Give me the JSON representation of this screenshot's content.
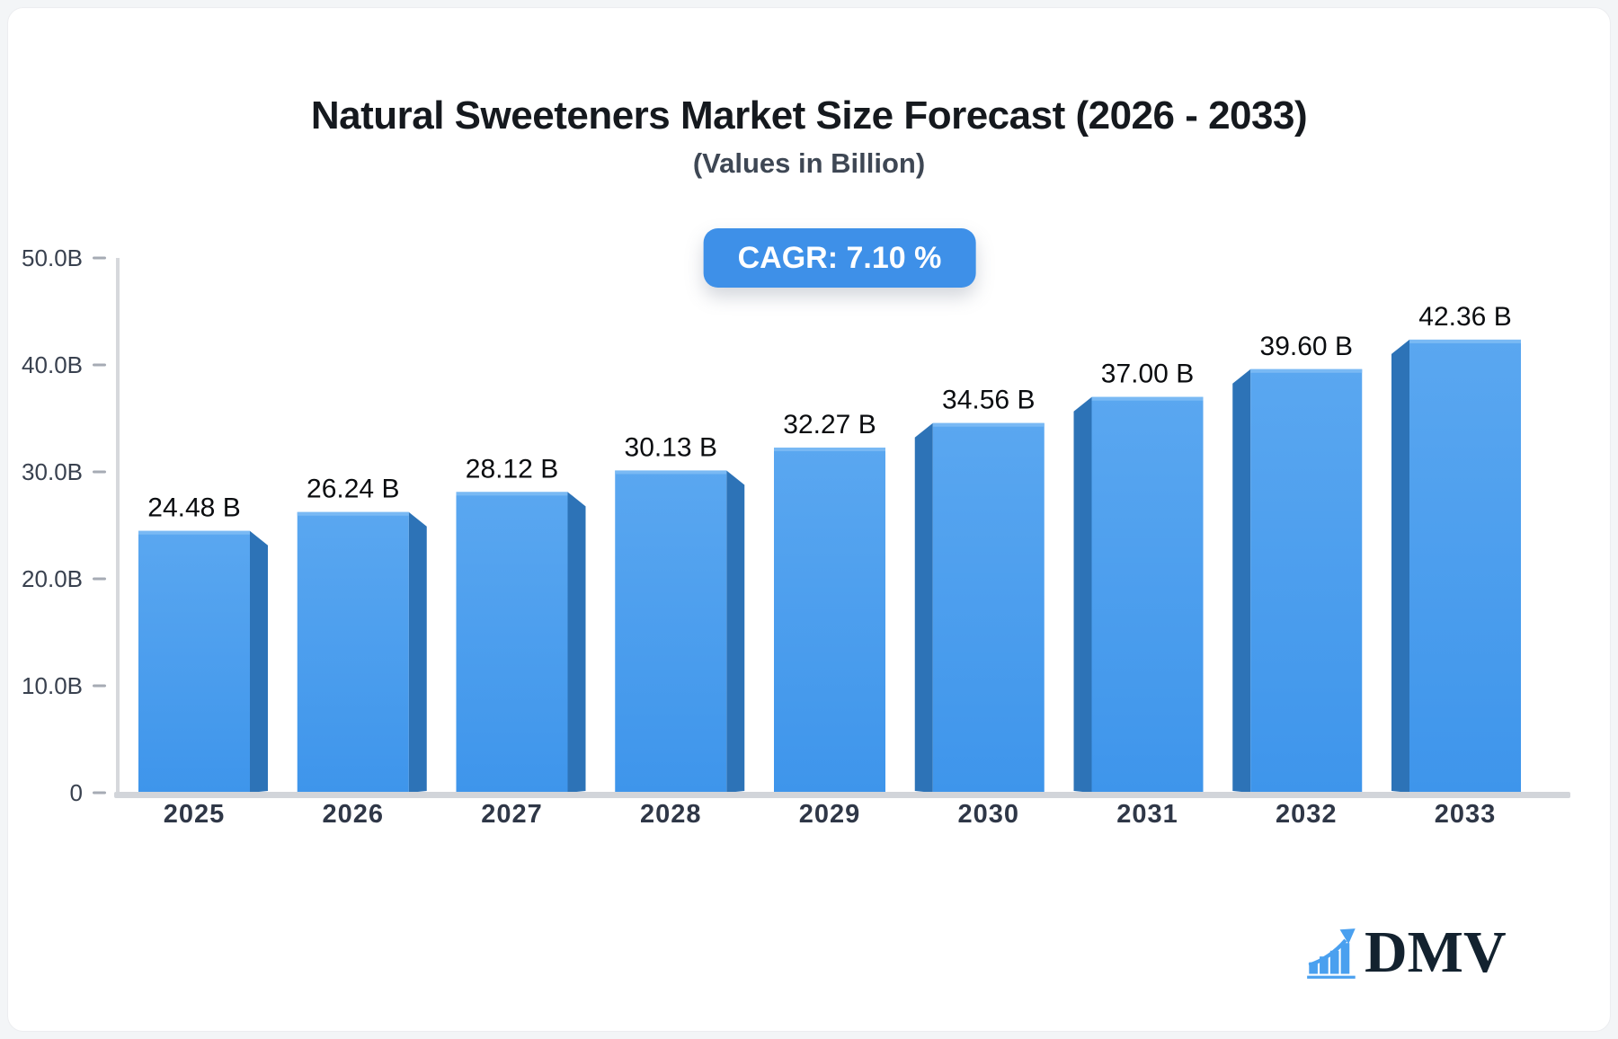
{
  "header": {
    "title": "Natural Sweeteners Market Size Forecast (2026 - 2033)",
    "subtitle": "(Values in Billion)",
    "badge": "CAGR: 7.10 %"
  },
  "chart_data": {
    "type": "bar",
    "title": "Natural Sweeteners Market Size Forecast (2026 - 2033)",
    "subtitle": "(Values in Billion)",
    "cagr_label": "CAGR: 7.10 %",
    "categories": [
      "2025",
      "2026",
      "2027",
      "2028",
      "2029",
      "2030",
      "2031",
      "2032",
      "2033"
    ],
    "values": [
      24.48,
      26.24,
      28.12,
      30.13,
      32.27,
      34.56,
      37.0,
      39.6,
      42.36
    ],
    "value_labels": [
      "24.48 B",
      "26.24 B",
      "28.12 B",
      "30.13 B",
      "32.27 B",
      "34.56 B",
      "37.00 B",
      "39.60 B",
      "42.36 B"
    ],
    "y_tick_labels": [
      "50.0B",
      "40.0B",
      "30.0B",
      "20.0B",
      "10.0B",
      "0"
    ],
    "y_tick_values": [
      50,
      40,
      30,
      20,
      10,
      0
    ],
    "ylim": [
      0,
      50
    ],
    "unit": "Billion",
    "grid": false,
    "legend": false,
    "style3d": true,
    "colors": {
      "bar_top": "#5aa7f0",
      "bar_bottom": "#3e95eb",
      "bar_top_edge": "#79b9f4",
      "bar_side": "#2d73b7",
      "axis_line": "#d6d8dc",
      "baseline": "#d2d5da",
      "tick_dash": "#a6abb4",
      "y_label": "#39414f",
      "x_label": "#2f3747",
      "value_label": "#0b0d10",
      "badge_bg": "#3e90e8",
      "badge_text": "#ffffff"
    }
  },
  "branding": {
    "logo_text": "DMV",
    "logo_icon": "bar-chart-rising-arrow-icon",
    "logo_icon_color": "#4aa0ef",
    "logo_text_color": "#13222f"
  }
}
